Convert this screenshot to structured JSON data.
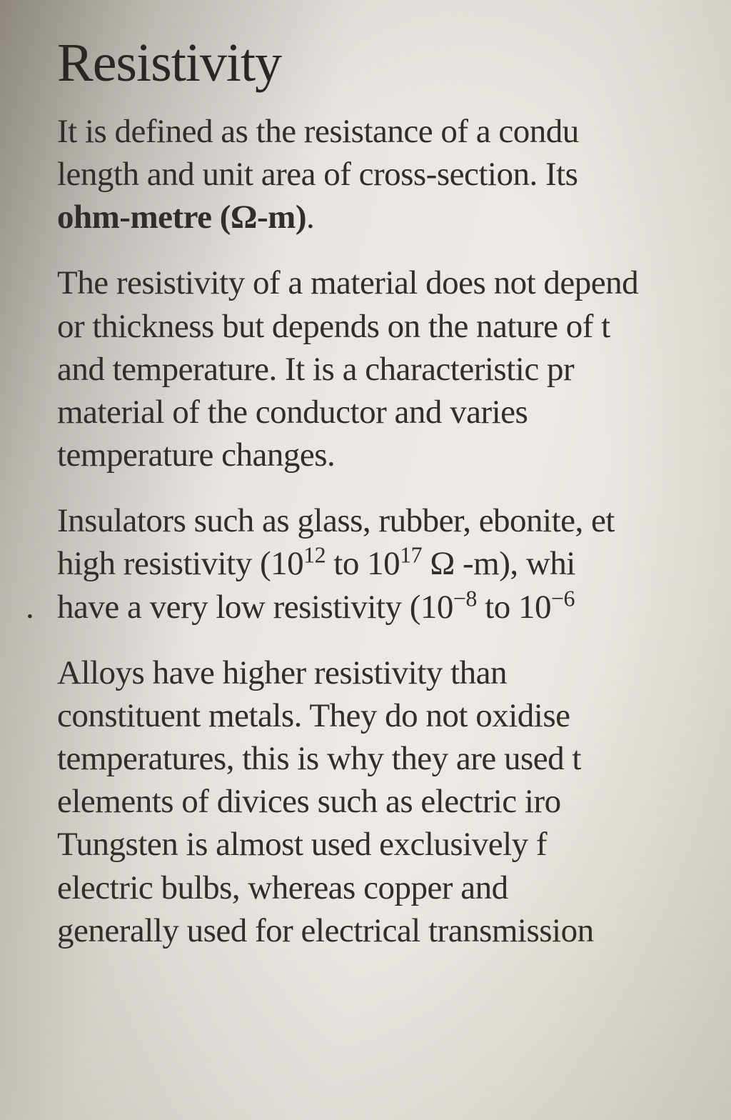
{
  "heading": "Resistivity",
  "p1_l1": "It is defined as the resistance of a condu",
  "p1_l2": "length and unit area of cross-section. Its",
  "p1_bold": "ohm-metre (Ω-m)",
  "p1_period": ".",
  "p2_l1": "The resistivity of a material does not depend",
  "p2_l2": "or thickness but depends on the nature of t",
  "p2_l3": "and temperature. It is a characteristic pr",
  "p2_l4": "material of the conductor and varies",
  "p2_l5": "temperature changes.",
  "p3_l1a": "Insulators such as glass, rubber, ebonite, et",
  "p3_l2a": "high resistivity (10",
  "p3_sup12": "12",
  "p3_l2b": " to 10",
  "p3_sup17": "17",
  "p3_l2c": " Ω -m), whi",
  "p3_l3a": "have a very low resistivity (10",
  "p3_supm8": "−8",
  "p3_l3b": " to 10",
  "p3_supm6": "−6",
  "p4_l1": "Alloys have higher resistivity than",
  "p4_l2": "constituent metals. They do not oxidise",
  "p4_l3": "temperatures, this is why they are used t",
  "p4_l4": "elements of divices such as electric iro",
  "p4_l5": "Tungsten is almost used exclusively f",
  "p4_l6": "electric bulbs, whereas copper and",
  "p4_l7": "generally used for electrical transmission"
}
